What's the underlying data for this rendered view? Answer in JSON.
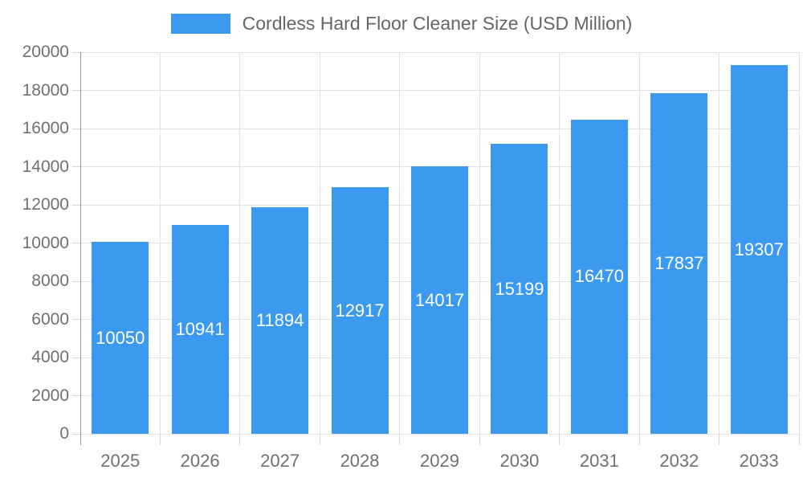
{
  "legend": {
    "items": [
      {
        "label": "Cordless Hard Floor Cleaner Size (USD Million)",
        "color": "#3B99F0"
      }
    ],
    "position": "top-center"
  },
  "colors": {
    "bar": "#3B99F0",
    "grid": "#E3E3E3",
    "axis_line": "#999999",
    "tick": "#D4D4D4",
    "axis_text": "#707070",
    "legend_text": "#666666",
    "bar_label_text": "#FFFFFF",
    "background": "#FFFFFF"
  },
  "chart_data": {
    "type": "bar",
    "title": "Cordless Hard Floor Cleaner Size (USD Million)",
    "categories": [
      "2025",
      "2026",
      "2027",
      "2028",
      "2029",
      "2030",
      "2031",
      "2032",
      "2033"
    ],
    "values": [
      10050,
      10941,
      11894,
      12917,
      14017,
      15199,
      16470,
      17837,
      19307
    ],
    "series": [
      {
        "name": "Cordless Hard Floor Cleaner Size (USD Million)",
        "values": [
          10050,
          10941,
          11894,
          12917,
          14017,
          15199,
          16470,
          17837,
          19307
        ]
      }
    ],
    "xlabel": "",
    "ylabel": "",
    "ylim": [
      0,
      20000
    ],
    "yticks": [
      0,
      2000,
      4000,
      6000,
      8000,
      10000,
      12000,
      14000,
      16000,
      18000,
      20000
    ],
    "grid": true,
    "legend_position": "top",
    "bar_label_position": "inside-middle"
  }
}
